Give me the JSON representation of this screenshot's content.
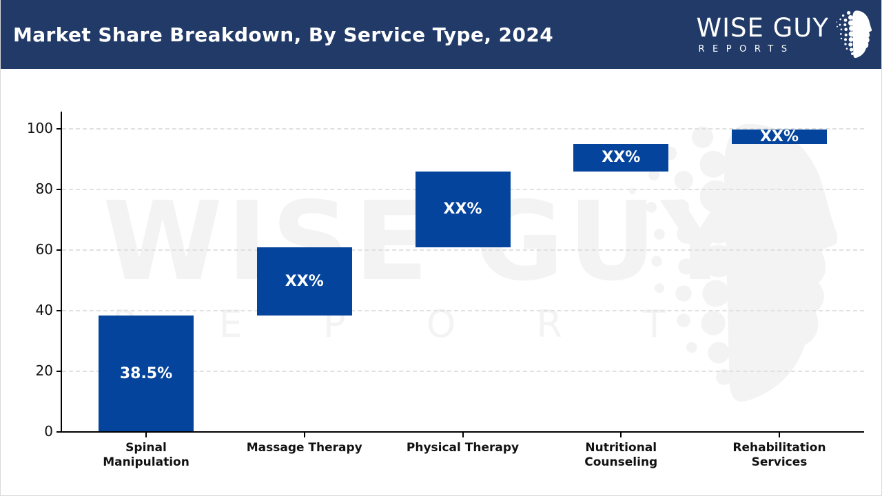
{
  "header": {
    "title": "Market Share Breakdown, By Service Type, 2024",
    "logo": {
      "wordmark": "WISE GUY",
      "subtitle": "REPORTS"
    }
  },
  "watermark": {
    "line1": "WISE GUY",
    "line2": "R E P O R T S"
  },
  "colors": {
    "header_bg": "#213a67",
    "header_text": "#ffffff",
    "bar": "#04449c",
    "bar_label": "#ffffff",
    "axis": "#000000",
    "tick_label": "#111111",
    "category_label": "#111111",
    "gridline": "#e0e0e0",
    "watermark": "#f3f3f3",
    "page_border": "#d9d9d9"
  },
  "chart_data": {
    "type": "bar",
    "subtype": "waterfall",
    "title": "Market Share Breakdown, By Service Type, 2024",
    "categories": [
      "Spinal Manipulation",
      "Massage Therapy",
      "Physical Therapy",
      "Nutritional Counseling",
      "Rehabilitation Services"
    ],
    "category_display": [
      "Spinal\nManipulation",
      "Massage Therapy",
      "Physical Therapy",
      "Nutritional\nCounseling",
      "Rehabilitation\nServices"
    ],
    "series": [
      {
        "name": "Market share (%)",
        "starts": [
          0,
          38.5,
          61,
          86,
          95
        ],
        "ends": [
          38.5,
          61,
          86,
          95,
          99.8
        ],
        "labels": [
          "38.5%",
          "XX%",
          "XX%",
          "XX%",
          "XX%"
        ]
      }
    ],
    "yticks": [
      0,
      20,
      40,
      60,
      80,
      100
    ],
    "ylim": [
      0,
      105
    ],
    "xlabel": "",
    "ylabel": "",
    "grid": "horizontal-dashed",
    "legend": "none"
  }
}
